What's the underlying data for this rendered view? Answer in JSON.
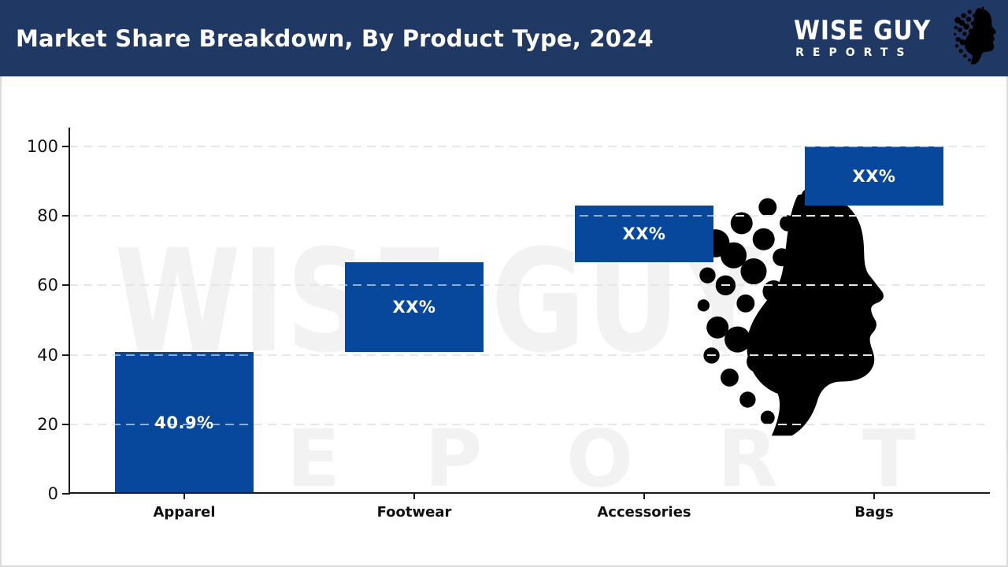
{
  "header": {
    "title": "Market Share Breakdown, By Product Type, 2024",
    "logo": {
      "line1": "WISE GUY",
      "line2": "REPORTS"
    }
  },
  "watermark": {
    "line1": "WISE GUY",
    "line2": "R E P O R T S"
  },
  "colors": {
    "header_bg": "#1f3864",
    "bar": "#07479c",
    "watermark": "#f2f2f2",
    "gridline": "#c9c9c9",
    "axis": "#1a1a1a"
  },
  "chart_data": {
    "type": "bar",
    "subtype": "waterfall",
    "title": "Market Share Breakdown, By Product Type, 2024",
    "xlabel": "",
    "ylabel": "",
    "categories": [
      "Apparel",
      "Footwear",
      "Accessories",
      "Bags"
    ],
    "segments": [
      {
        "category": "Apparel",
        "start": 0,
        "end": 40.9,
        "label": "40.9%"
      },
      {
        "category": "Footwear",
        "start": 40.9,
        "end": 66.6,
        "label": "XX%"
      },
      {
        "category": "Accessories",
        "start": 66.6,
        "end": 82.9,
        "label": "XX%"
      },
      {
        "category": "Bags",
        "start": 82.9,
        "end": 100,
        "label": "XX%"
      }
    ],
    "ylim": [
      0,
      100
    ],
    "yticks": [
      0,
      20,
      40,
      60,
      80,
      100
    ],
    "grid": "dashed-horizontal",
    "legend": "none"
  }
}
